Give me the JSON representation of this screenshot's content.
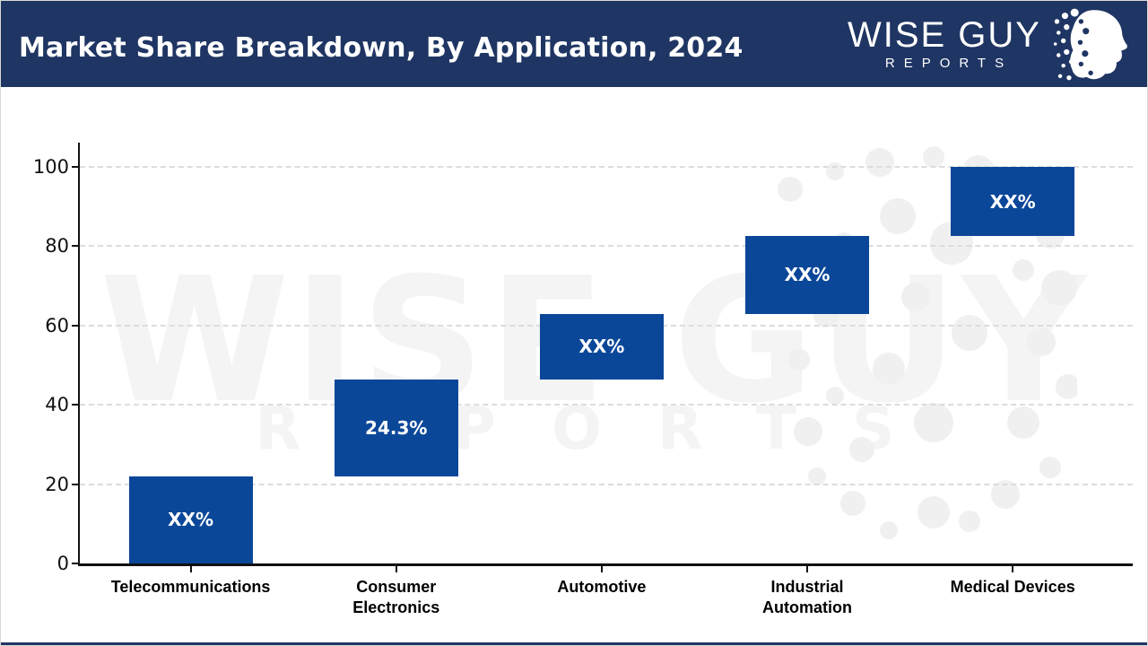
{
  "header": {
    "title": "Market Share Breakdown, By Application, 2024",
    "logo": {
      "wordmark": "WISE GUY",
      "subtext": "REPORTS"
    }
  },
  "watermark": {
    "wordmark": "WISE GUY",
    "subtext": "REPORTS"
  },
  "chart_data": {
    "type": "bar",
    "variant": "floating-segment-waterfall",
    "title": "Market Share Breakdown, By Application, 2024",
    "categories": [
      "Telecommunications",
      "Consumer Electronics",
      "Automotive",
      "Industrial Automation",
      "Medical Devices"
    ],
    "category_tick_labels": [
      "Telecommunications",
      "Consumer\nElectronics",
      "Automotive",
      "Industrial\nAutomation",
      "Medical Devices"
    ],
    "segments": [
      {
        "category": "Telecommunications",
        "start": 0,
        "end": 22,
        "label": "XX%"
      },
      {
        "category": "Consumer Electronics",
        "start": 22,
        "end": 46.3,
        "label": "24.3%"
      },
      {
        "category": "Automotive",
        "start": 46.3,
        "end": 63,
        "label": "XX%"
      },
      {
        "category": "Industrial Automation",
        "start": 63,
        "end": 82.5,
        "label": "XX%"
      },
      {
        "category": "Medical Devices",
        "start": 82.5,
        "end": 100,
        "label": "XX%"
      }
    ],
    "xlabel": "",
    "ylabel": "",
    "y_ticks": [
      0,
      20,
      40,
      60,
      80,
      100
    ],
    "ylim": [
      0,
      105.7
    ],
    "grid": {
      "horizontal": true,
      "style": "dashed",
      "at": [
        20,
        40,
        60,
        80,
        100
      ]
    },
    "legend": null,
    "bar_color": "#0b4799",
    "bar_label_color": "#ffffff"
  },
  "colors": {
    "header_background": "#1f3563",
    "bar_fill": "#0b4799",
    "gridline": "#dcdcdc",
    "axis_line": "#111111",
    "tick_label_text": "#111111",
    "watermark": "#f4f4f4",
    "frame_border": "#d9d9d9",
    "footer_background": "#1f3563"
  }
}
